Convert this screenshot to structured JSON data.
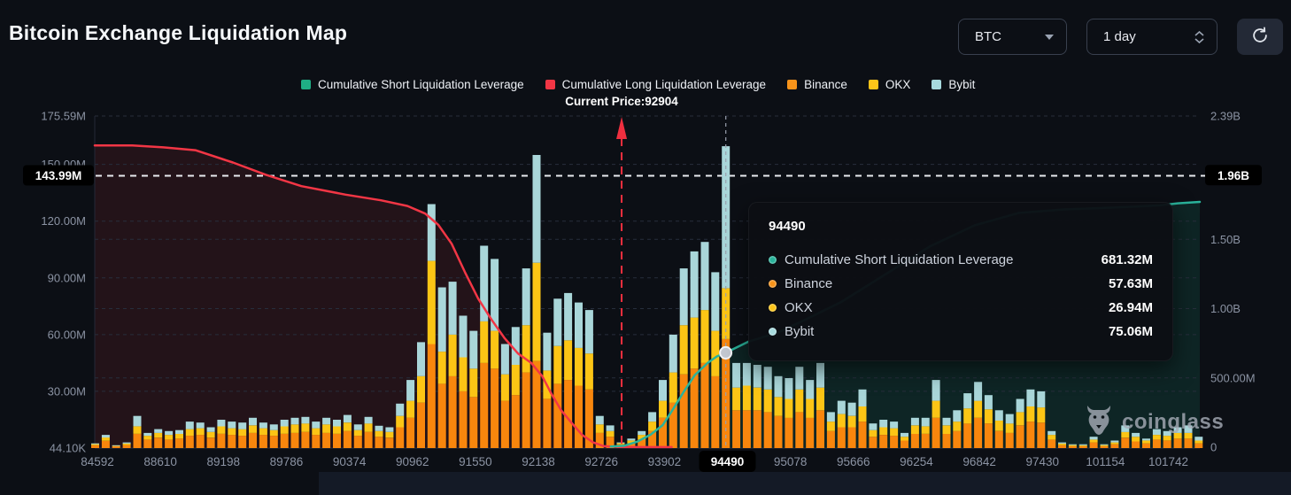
{
  "header": {
    "title": "Bitcoin Exchange Liquidation Map"
  },
  "controls": {
    "symbol": "BTC",
    "interval": "1 day",
    "refresh_icon": "refresh-circular-arrow"
  },
  "legend": [
    {
      "label": "Cumulative Short Liquidation Leverage",
      "color": "#1fae85"
    },
    {
      "label": "Cumulative Long Liquidation Leverage",
      "color": "#f23645"
    },
    {
      "label": "Binance",
      "color": "#f7931a"
    },
    {
      "label": "OKX",
      "color": "#fcc419"
    },
    {
      "label": "Bybit",
      "color": "#a7dade"
    }
  ],
  "current_price_label": "Current Price:92904",
  "current_price": 92904,
  "tooltip": {
    "title": "94490",
    "rows": [
      {
        "label": "Cumulative Short Liquidation Leverage",
        "value": "681.32M",
        "color": "#2ab39b"
      },
      {
        "label": "Binance",
        "value": "57.63M",
        "color": "#f7931a"
      },
      {
        "label": "OKX",
        "value": "26.94M",
        "color": "#fcc419"
      },
      {
        "label": "Bybit",
        "value": "75.06M",
        "color": "#a7dade"
      }
    ]
  },
  "watermark": {
    "text": "coinglass",
    "icon": "coinglass-goat-logo"
  },
  "chart_data": {
    "type": "bar",
    "subtype": "stacked-bars-with-two-cumulative-lines",
    "title": "Bitcoin Exchange Liquidation Map",
    "left_axis": {
      "ticks": [
        {
          "label": "175.59M",
          "v": 175.59
        },
        {
          "label": "150.00M",
          "v": 150
        },
        {
          "label": "120.00M",
          "v": 120
        },
        {
          "label": "90.00M",
          "v": 90
        },
        {
          "label": "60.00M",
          "v": 60
        },
        {
          "label": "30.00M",
          "v": 30
        },
        {
          "label": "44.10K",
          "v": 0.0441
        }
      ],
      "badge": {
        "label": "143.99M",
        "v": 143.99
      }
    },
    "right_axis": {
      "ticks": [
        {
          "label": "2.39B",
          "v": 2.39
        },
        {
          "label": "1.50B",
          "v": 1.5
        },
        {
          "label": "1.00B",
          "v": 1.0
        },
        {
          "label": "500.00M",
          "v": 0.5
        },
        {
          "label": "0",
          "v": 0
        }
      ],
      "badge": {
        "label": "1.96B",
        "v": 1.96
      }
    },
    "x_labels": [
      "84592",
      "88610",
      "89198",
      "89786",
      "90374",
      "90962",
      "91550",
      "92138",
      "92726",
      "93902",
      "94490",
      "95078",
      "95666",
      "96254",
      "96842",
      "97430",
      "101154",
      "101742"
    ],
    "x_highlight_index": 10,
    "grid": true,
    "legend_position": "top-center",
    "bar_series_order": [
      "Binance",
      "OKX",
      "Bybit"
    ],
    "bar_colors": [
      "#f8860d",
      "#fcc515",
      "#a9d6d9"
    ],
    "bars_unit": "M",
    "bars": [
      [
        1.5,
        0.6,
        0.4
      ],
      [
        3.8,
        1.8,
        1.4
      ],
      [
        0.9,
        0.4,
        0.2
      ],
      [
        1.6,
        0.8,
        0.6
      ],
      [
        7.5,
        4,
        5.5
      ],
      [
        4.5,
        2,
        1.5
      ],
      [
        5.5,
        2.5,
        2
      ],
      [
        4.5,
        2.5,
        2
      ],
      [
        5,
        2.5,
        2
      ],
      [
        6.5,
        3.5,
        4
      ],
      [
        7,
        3.5,
        3
      ],
      [
        5.5,
        3,
        2.5
      ],
      [
        7.5,
        4,
        3.5
      ],
      [
        7,
        3.5,
        3.5
      ],
      [
        6.5,
        3.5,
        3.5
      ],
      [
        8,
        4,
        4
      ],
      [
        7,
        3.5,
        3
      ],
      [
        6.5,
        3,
        3
      ],
      [
        7.5,
        4,
        3.5
      ],
      [
        8,
        4.5,
        3.5
      ],
      [
        8.5,
        4.5,
        3.5
      ],
      [
        7,
        3.5,
        3.5
      ],
      [
        8,
        4.5,
        3.5
      ],
      [
        7.5,
        4,
        3.5
      ],
      [
        9,
        4.5,
        4
      ],
      [
        6.5,
        3,
        3
      ],
      [
        8.5,
        4.5,
        3.5
      ],
      [
        6,
        3,
        2.8
      ],
      [
        5.5,
        3,
        2.5
      ],
      [
        11,
        6,
        6.5
      ],
      [
        16,
        9,
        11
      ],
      [
        24,
        14,
        18
      ],
      [
        55,
        44,
        30
      ],
      [
        34,
        17,
        34
      ],
      [
        38,
        22,
        28
      ],
      [
        30,
        18,
        22
      ],
      [
        27,
        15,
        20
      ],
      [
        45,
        22,
        40
      ],
      [
        42,
        20,
        38
      ],
      [
        25,
        14,
        16
      ],
      [
        28,
        16,
        20
      ],
      [
        40,
        25,
        30
      ],
      [
        46,
        52,
        57
      ],
      [
        26,
        15,
        20
      ],
      [
        34,
        20,
        25
      ],
      [
        36,
        21,
        25
      ],
      [
        33,
        20,
        24
      ],
      [
        31,
        19,
        23
      ],
      [
        8,
        4.5,
        4.5
      ],
      [
        6,
        3,
        3
      ],
      [
        2,
        0.6,
        0.4
      ],
      [
        2.5,
        1.5,
        1
      ],
      [
        4.5,
        2.5,
        2
      ],
      [
        9,
        5,
        5
      ],
      [
        16,
        9,
        11
      ],
      [
        24,
        16,
        20
      ],
      [
        39,
        26,
        30
      ],
      [
        42,
        27,
        35
      ],
      [
        45,
        28,
        36
      ],
      [
        38,
        24,
        31
      ],
      [
        57.63,
        26.94,
        75.06
      ],
      [
        20,
        12,
        13
      ],
      [
        20,
        13,
        12
      ],
      [
        20,
        12,
        12
      ],
      [
        19,
        12,
        12
      ],
      [
        17,
        10,
        11
      ],
      [
        16,
        10,
        11
      ],
      [
        19,
        12,
        12
      ],
      [
        16,
        10,
        10
      ],
      [
        20,
        12,
        13
      ],
      [
        9,
        5,
        5
      ],
      [
        11,
        7,
        7
      ],
      [
        11,
        6,
        7
      ],
      [
        14,
        8,
        9
      ],
      [
        6,
        3.5,
        3.5
      ],
      [
        7,
        4,
        4
      ],
      [
        6.5,
        4,
        3.5
      ],
      [
        4,
        2,
        2
      ],
      [
        7.5,
        4.5,
        4
      ],
      [
        7.5,
        4,
        4.5
      ],
      [
        16,
        9,
        11
      ],
      [
        7.5,
        4.5,
        4
      ],
      [
        9,
        5,
        6
      ],
      [
        13,
        8,
        8
      ],
      [
        16,
        9,
        10
      ],
      [
        13,
        7.5,
        7.5
      ],
      [
        9,
        5.5,
        5.5
      ],
      [
        8,
        5,
        5
      ],
      [
        12,
        7,
        7
      ],
      [
        14,
        8,
        9
      ],
      [
        13.5,
        8,
        8.5
      ],
      [
        4.5,
        2.5,
        2
      ],
      [
        1.5,
        0.9,
        0.6
      ],
      [
        1,
        0.6,
        0.4
      ],
      [
        1,
        0.5,
        0.5
      ],
      [
        3,
        1.5,
        1.5
      ],
      [
        1,
        0.6,
        0.4
      ],
      [
        2,
        1,
        1
      ],
      [
        5.5,
        3,
        3.5
      ],
      [
        3.5,
        2.5,
        2
      ],
      [
        2.5,
        1.5,
        1
      ],
      [
        4.5,
        2.5,
        3
      ],
      [
        4,
        2.5,
        2.5
      ],
      [
        5,
        3,
        3
      ],
      [
        5,
        3,
        4
      ],
      [
        2.5,
        1.5,
        2
      ]
    ],
    "hovered_bar_index": 60,
    "long_line": {
      "name": "Cumulative Long Liquidation Leverage",
      "axis": "left",
      "unit": "M",
      "color": "#f23645",
      "points": [
        [
          0.0,
          160
        ],
        [
          0.034,
          160
        ],
        [
          0.062,
          159
        ],
        [
          0.091,
          157.5
        ],
        [
          0.125,
          151
        ],
        [
          0.155,
          144.5
        ],
        [
          0.187,
          138.5
        ],
        [
          0.227,
          134
        ],
        [
          0.259,
          131
        ],
        [
          0.283,
          128
        ],
        [
          0.299,
          124
        ],
        [
          0.311,
          118
        ],
        [
          0.323,
          108
        ],
        [
          0.335,
          93
        ],
        [
          0.347,
          79
        ],
        [
          0.359,
          68
        ],
        [
          0.371,
          58
        ],
        [
          0.383,
          50
        ],
        [
          0.395,
          45
        ],
        [
          0.405,
          38
        ],
        [
          0.413,
          29
        ],
        [
          0.422,
          20
        ],
        [
          0.432,
          13
        ],
        [
          0.441,
          7
        ],
        [
          0.451,
          3
        ],
        [
          0.461,
          1
        ],
        [
          0.475,
          0.6
        ],
        [
          0.499,
          0.5
        ],
        [
          0.522,
          0.5
        ]
      ]
    },
    "short_line": {
      "name": "Cumulative Short Liquidation Leverage",
      "axis": "right",
      "unit": "B",
      "color": "#2ab39b",
      "points": [
        [
          0.467,
          0.005
        ],
        [
          0.479,
          0.01
        ],
        [
          0.491,
          0.04
        ],
        [
          0.503,
          0.09
        ],
        [
          0.514,
          0.16
        ],
        [
          0.523,
          0.27
        ],
        [
          0.533,
          0.4
        ],
        [
          0.543,
          0.52
        ],
        [
          0.555,
          0.61
        ],
        [
          0.563,
          0.655
        ],
        [
          0.571,
          0.681
        ],
        [
          0.581,
          0.72
        ],
        [
          0.591,
          0.76
        ],
        [
          0.603,
          0.79
        ],
        [
          0.619,
          0.83
        ],
        [
          0.643,
          0.92
        ],
        [
          0.676,
          1.05
        ],
        [
          0.716,
          1.25
        ],
        [
          0.756,
          1.45
        ],
        [
          0.796,
          1.6
        ],
        [
          0.836,
          1.69
        ],
        [
          0.876,
          1.715
        ],
        [
          0.924,
          1.73
        ],
        [
          0.964,
          1.745
        ],
        [
          0.98,
          1.76
        ],
        [
          1.0,
          1.77
        ]
      ]
    },
    "marker": {
      "x01": 0.571,
      "value": 0.681,
      "axis": "right"
    },
    "current_price_x01": 0.4768,
    "dashed_reference_line": {
      "left_value": 143.99,
      "right_value": 1.96
    }
  }
}
